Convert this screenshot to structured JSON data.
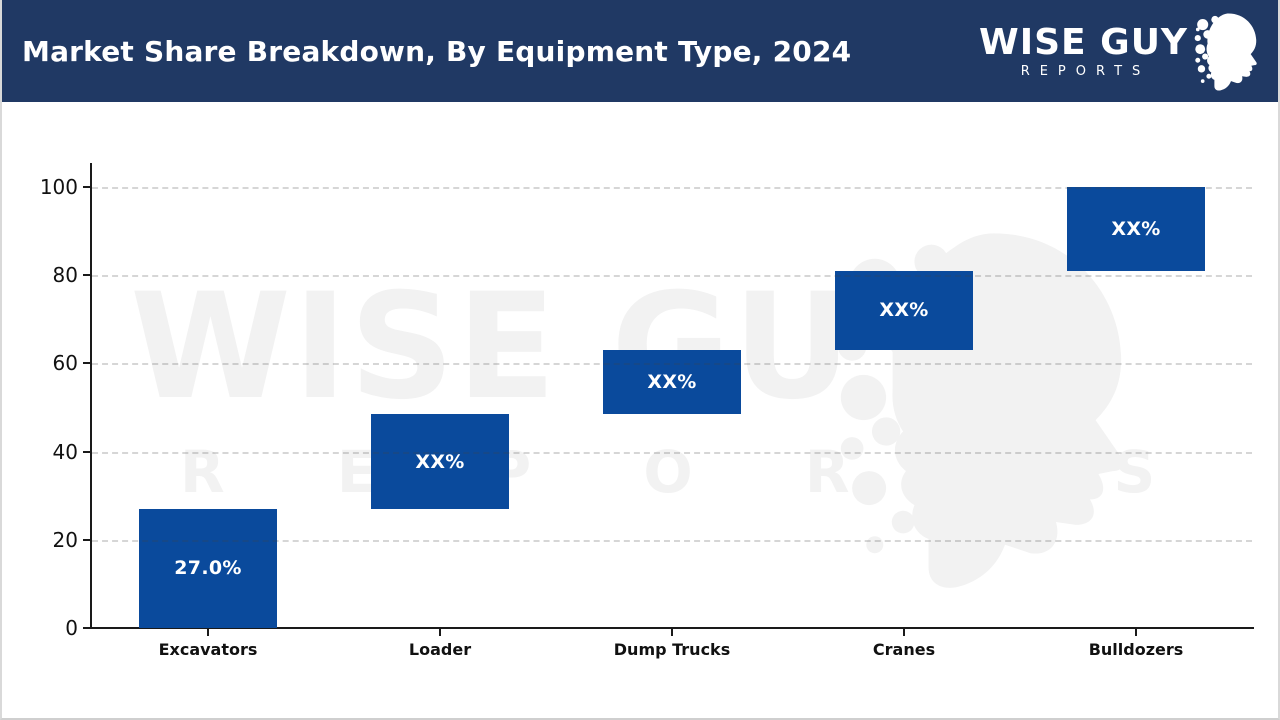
{
  "header": {
    "title": "Market Share Breakdown, By Equipment Type, 2024",
    "bg_color": "#203964",
    "logo": {
      "line1": "WISE GUY",
      "line2": "REPORTS"
    }
  },
  "watermark": {
    "line1": "WISE GUY",
    "line2": "REPORTS",
    "color": "#f2f2f2"
  },
  "chart_data": {
    "type": "bar",
    "subtype": "waterfall",
    "title": "Market Share Breakdown, By Equipment Type, 2024",
    "xlabel": "",
    "ylabel": "",
    "categories": [
      "Excavators",
      "Loader",
      "Dump Trucks",
      "Cranes",
      "Bulldozers"
    ],
    "segments": [
      {
        "category": "Excavators",
        "start": 0,
        "end": 27,
        "label": "27.0%"
      },
      {
        "category": "Loader",
        "start": 27,
        "end": 48.5,
        "label": "XX%"
      },
      {
        "category": "Dump Trucks",
        "start": 48.5,
        "end": 63,
        "label": "XX%"
      },
      {
        "category": "Cranes",
        "start": 63,
        "end": 81,
        "label": "XX%"
      },
      {
        "category": "Bulldozers",
        "start": 81,
        "end": 100,
        "label": "XX%"
      }
    ],
    "y_ticks": [
      0,
      20,
      40,
      60,
      80,
      100
    ],
    "ylim": [
      0,
      105
    ],
    "grid": "horizontal-dashed",
    "legend": "none",
    "bar_color": "#0a4a9c",
    "bar_label_color": "#ffffff"
  }
}
